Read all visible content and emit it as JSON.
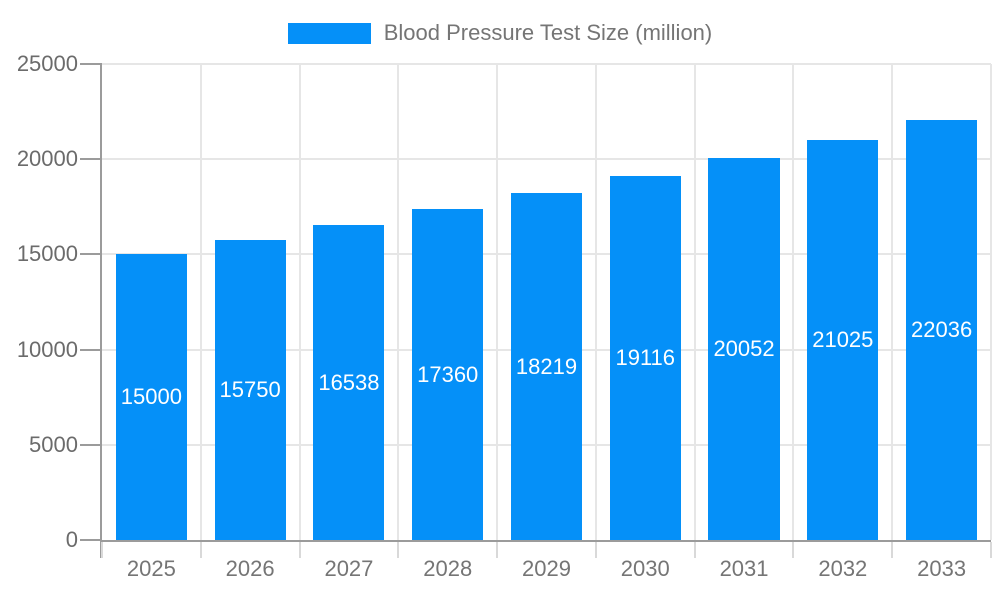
{
  "legend": {
    "label": "Blood Pressure Test Size (million)",
    "swatch_color": "#0590f8"
  },
  "chart_data": {
    "type": "bar",
    "title": "",
    "xlabel": "",
    "ylabel": "",
    "categories": [
      "2025",
      "2026",
      "2027",
      "2028",
      "2029",
      "2030",
      "2031",
      "2032",
      "2033"
    ],
    "series": [
      {
        "name": "Blood Pressure Test Size (million)",
        "values": [
          15000,
          15750,
          16538,
          17360,
          18219,
          19116,
          20052,
          21025,
          22036
        ]
      }
    ],
    "data_labels": [
      "15000",
      "15750",
      "16538",
      "17360",
      "18219",
      "19116",
      "20052",
      "21025",
      "22036"
    ],
    "data_label_position": "inside-center",
    "data_label_color": "#ffffff",
    "ylim": [
      0,
      25000
    ],
    "yticks": [
      0,
      5000,
      10000,
      15000,
      20000,
      25000
    ],
    "grid": true,
    "legend_position": "top-center",
    "bar_color": "#0590f8",
    "axis_color": "#9b9b9b",
    "gridline_color": "#e6e6e6",
    "axis_label_color": "#6b6b6b"
  }
}
